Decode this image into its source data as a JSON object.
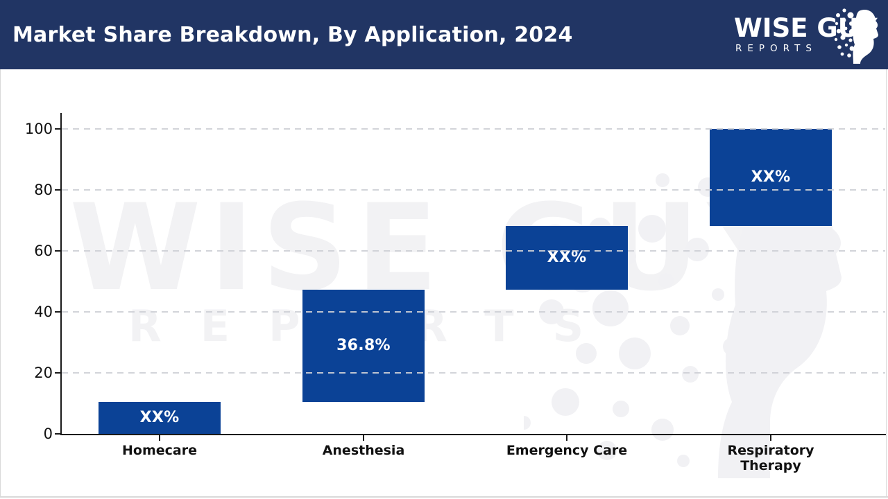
{
  "header": {
    "title": "Market Share Breakdown, By Application, 2024",
    "logo": {
      "line1": "WISE GUY",
      "line2": "REPORTS"
    }
  },
  "watermark": {
    "line1": "WISE GUY",
    "line2": "REPORTS"
  },
  "chart_data": {
    "type": "bar",
    "subtype": "waterfall-floating-bars",
    "title": "Market Share Breakdown, By Application, 2024",
    "xlabel": "",
    "ylabel": "",
    "categories": [
      "Homecare",
      "Anesthesia",
      "Emergency Care",
      "Respiratory Therapy"
    ],
    "categories_display": [
      "Homecare",
      "Anesthesia",
      "Emergency Care",
      "Respiratory\nTherapy"
    ],
    "segments": [
      {
        "category": "Homecare",
        "start": 0,
        "end": 10.5,
        "value": 10.5,
        "label": "XX%"
      },
      {
        "category": "Anesthesia",
        "start": 10.5,
        "end": 47.3,
        "value": 36.8,
        "label": "36.8%"
      },
      {
        "category": "Emergency Care",
        "start": 47.3,
        "end": 68.2,
        "value": 20.9,
        "label": "XX%"
      },
      {
        "category": "Respiratory Therapy",
        "start": 68.2,
        "end": 100,
        "value": 31.8,
        "label": "XX%"
      }
    ],
    "yticks": [
      0,
      20,
      40,
      60,
      80,
      100
    ],
    "ylim": [
      0,
      105
    ],
    "grid": true,
    "gridline_style": "dashed",
    "legend": "none",
    "colors": {
      "bar": "#0b4296",
      "header_background": "#213564",
      "gridline": "#d9d9d9",
      "axis": "#1a1a1a",
      "bar_label_text": "#ffffff",
      "watermark": "#f2f2f4"
    }
  }
}
